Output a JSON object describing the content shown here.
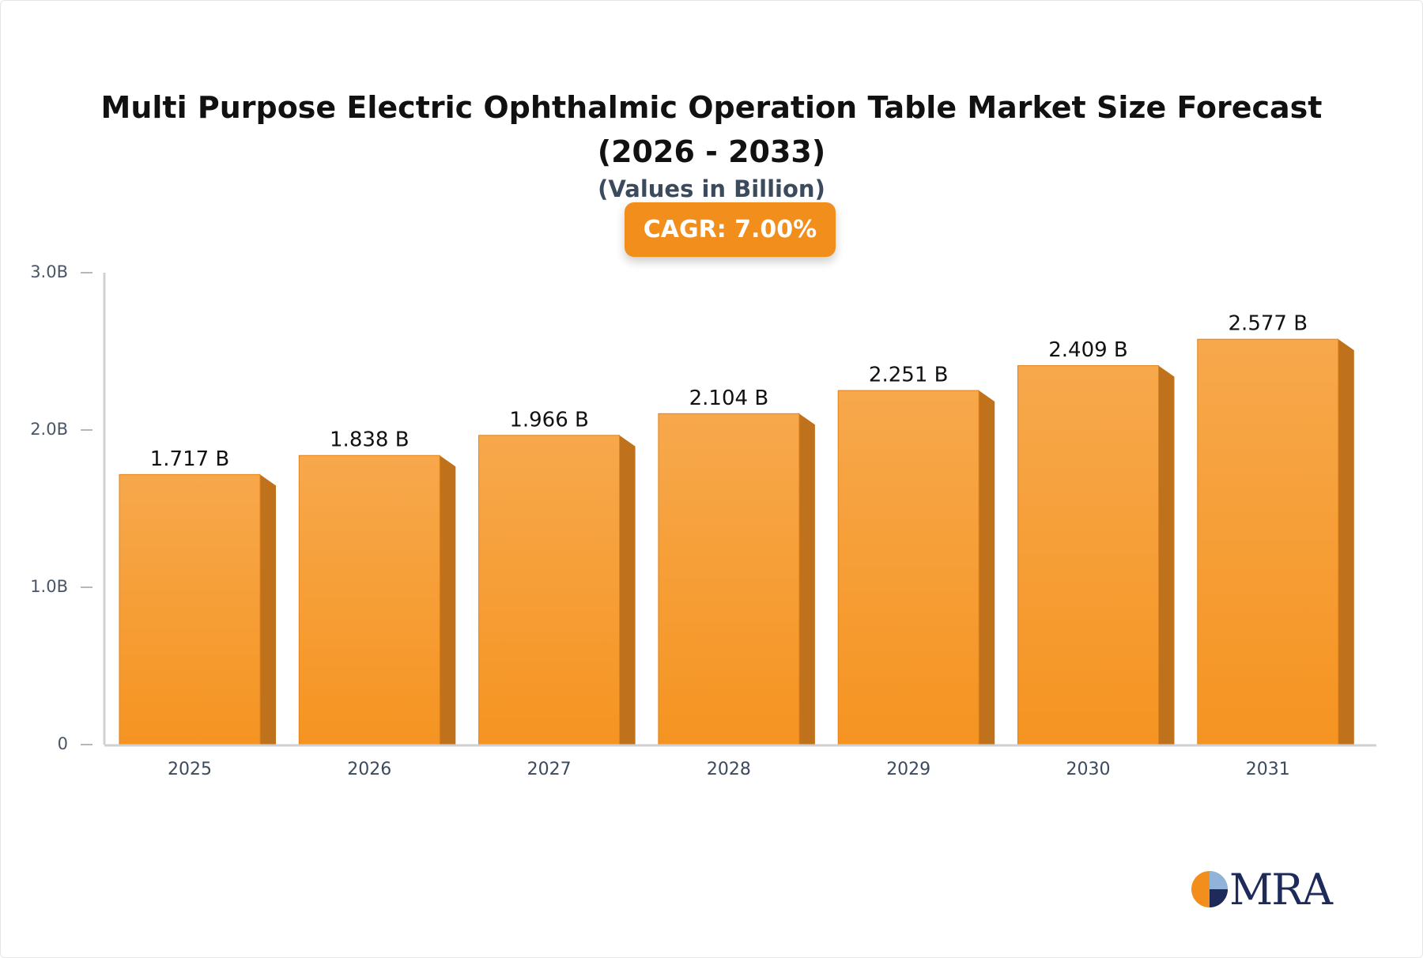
{
  "chart_data": {
    "type": "bar",
    "title": "Multi Purpose Electric Ophthalmic Operation Table Market Size Forecast (2026 - 2033)",
    "subtitle": "(Values in Billion)",
    "badge": "CAGR: 7.00%",
    "logo": "MRA",
    "categories": [
      "2025",
      "2026",
      "2027",
      "2028",
      "2029",
      "2030",
      "2031"
    ],
    "values": [
      1.717,
      1.838,
      1.966,
      2.104,
      2.251,
      2.409,
      2.577
    ],
    "value_labels": [
      "1.717 B",
      "1.838 B",
      "1.966 B",
      "2.104 B",
      "2.251 B",
      "2.409 B",
      "2.577 B"
    ],
    "color": "#f69b30",
    "ylim": [
      0,
      3
    ],
    "yticks": [
      0,
      {
        "value": 1,
        "label": "1.0B"
      },
      {
        "value": 2,
        "label": "2.0B"
      },
      {
        "value": 3,
        "label": "3.0B"
      }
    ]
  }
}
